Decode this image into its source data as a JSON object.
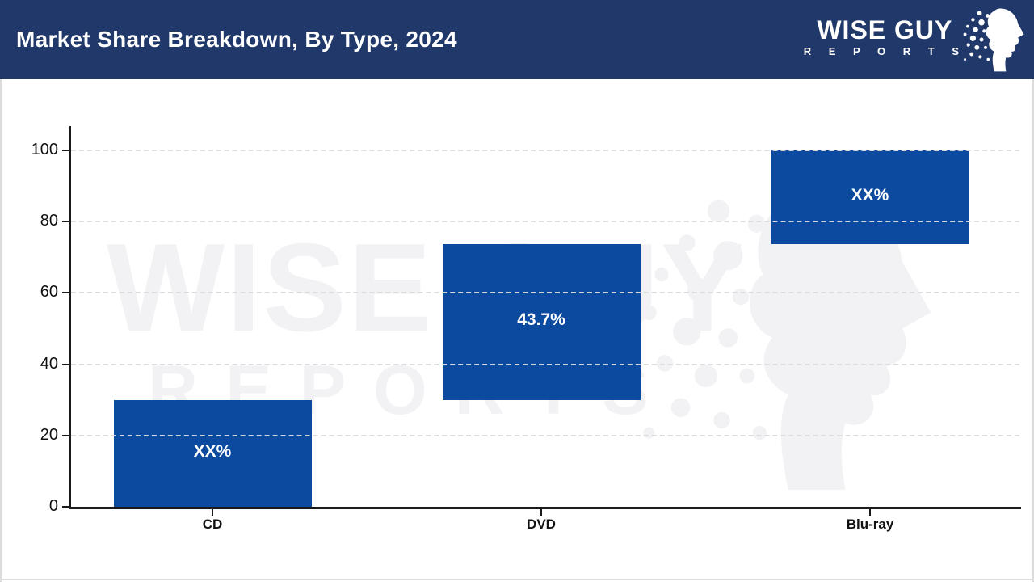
{
  "header": {
    "title": "Market Share Breakdown, By Type, 2024",
    "logo": {
      "line1": "WISE GUY",
      "line2": "R E P O R T S"
    }
  },
  "watermark": {
    "line1": "WISE GUY",
    "line2": "REPORTS"
  },
  "colors": {
    "header_bg": "#21396a",
    "bar": "#0b4a9f",
    "title_text": "#ffffff",
    "gridline": "#dbdbde",
    "axis": "#1a1a1a",
    "watermark": "#f2f2f5",
    "image_border": "#dcdcdc"
  },
  "chart_data": {
    "type": "bar",
    "variant": "floating-waterfall-segments",
    "title": "Market Share Breakdown, By Type, 2024",
    "categories": [
      "CD",
      "DVD",
      "Blu-ray"
    ],
    "bars": [
      {
        "category": "CD",
        "y_start": 0,
        "y_end": 30,
        "segment_size": 30,
        "label": "XX%"
      },
      {
        "category": "DVD",
        "y_start": 30,
        "y_end": 73.7,
        "segment_size": 43.7,
        "label": "43.7%"
      },
      {
        "category": "Blu-ray",
        "y_start": 73.7,
        "y_end": 100,
        "segment_size": 26.3,
        "label": "XX%"
      }
    ],
    "xlabel": "",
    "ylabel": "",
    "ylim": [
      0,
      100
    ],
    "yticks": [
      0,
      20,
      40,
      60,
      80,
      100
    ],
    "grid": "horizontal-dashed",
    "grid_on_top_of_bars": true,
    "legend": "none",
    "bar_color": "#0b4a9f",
    "bar_label_color": "#ffffff"
  }
}
